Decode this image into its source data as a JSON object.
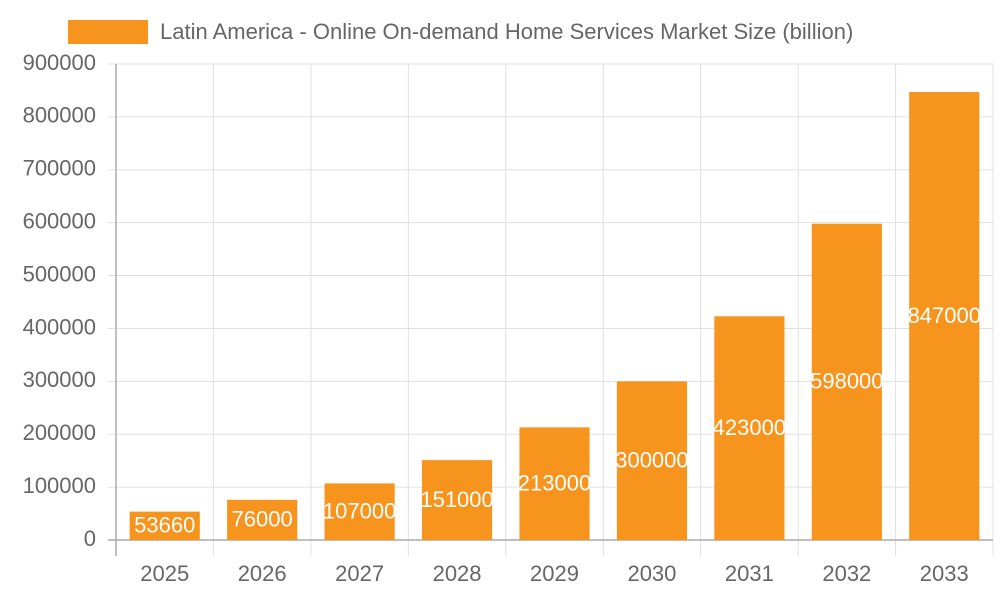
{
  "chart_data": {
    "type": "bar",
    "categories": [
      "2025",
      "2026",
      "2027",
      "2028",
      "2029",
      "2030",
      "2031",
      "2032",
      "2033"
    ],
    "series": [
      {
        "name": "Latin America - Online On-demand Home Services Market Size (billion)",
        "color": "#f7941d",
        "values": [
          53660,
          76000,
          107000,
          151000,
          213000,
          300000,
          423000,
          598000,
          847000
        ]
      }
    ],
    "ylim": [
      0,
      900000
    ],
    "yticks": [
      0,
      100000,
      200000,
      300000,
      400000,
      500000,
      600000,
      700000,
      800000,
      900000
    ],
    "grid": true,
    "legend": "top"
  }
}
